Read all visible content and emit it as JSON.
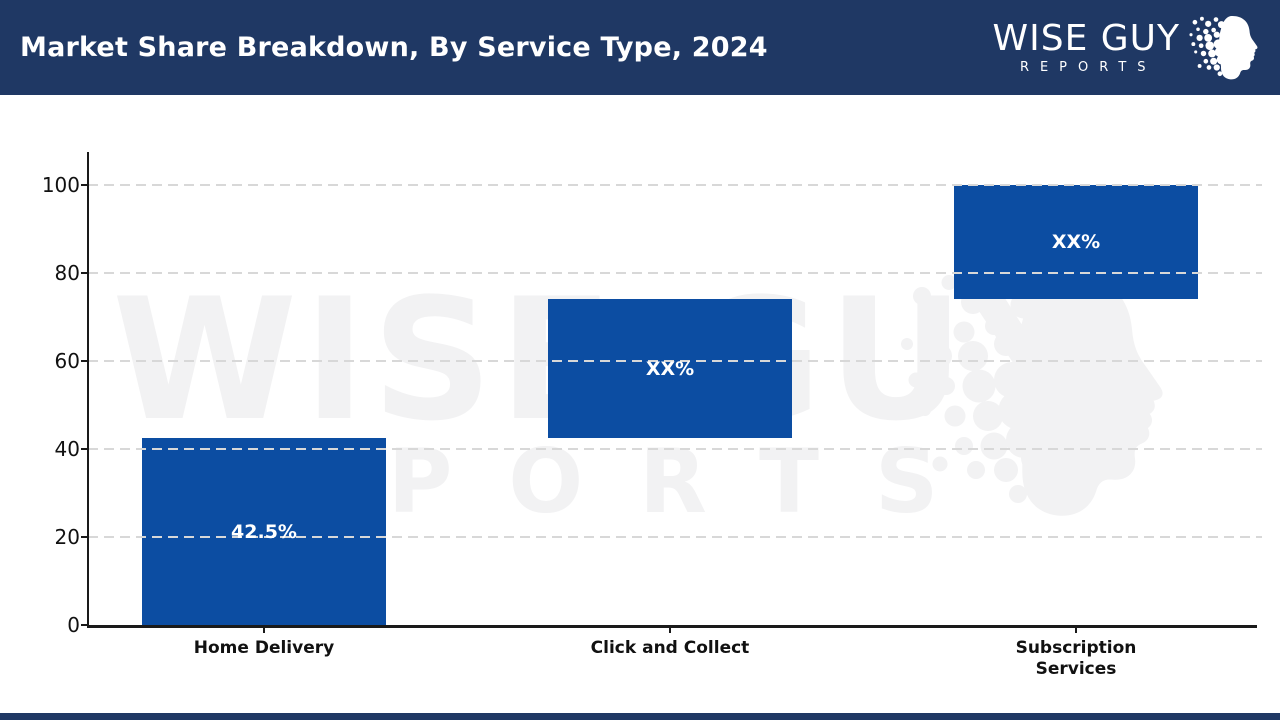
{
  "header": {
    "title": "Market Share Breakdown, By Service Type, 2024",
    "logo": {
      "name": "WISE GUY",
      "sub": "REPORTS"
    }
  },
  "watermark": {
    "line1": "WISE GUY",
    "line2": "REPORTS"
  },
  "colors": {
    "header_bg": "#1f3864",
    "footer_bg": "#1f3864",
    "bar": "#0c4da2",
    "grid": "#d8d8d8",
    "axis": "#1a1a1a",
    "watermark": "#f2f2f3"
  },
  "chart_data": {
    "type": "bar",
    "variant": "floating-waterfall",
    "title": "Market Share Breakdown, By Service Type, 2024",
    "categories": [
      "Home Delivery",
      "Click and Collect",
      "Subscription Services"
    ],
    "series": [
      {
        "name": "Market share (%)",
        "segments": [
          {
            "category": "Home Delivery",
            "start": 0,
            "end": 42.5,
            "label": "42.5%"
          },
          {
            "category": "Click and Collect",
            "start": 42.5,
            "end": 74,
            "label": "XX%"
          },
          {
            "category": "Subscription Services",
            "start": 74,
            "end": 100,
            "label": "XX%"
          }
        ]
      }
    ],
    "yticks": [
      0,
      20,
      40,
      60,
      80,
      100
    ],
    "ylim": [
      0,
      107
    ],
    "xlabel": "",
    "ylabel": "",
    "grid": "dashed-horizontal",
    "legend": false,
    "bar_color": "#0c4da2",
    "bar_label_color": "#ffffff"
  }
}
